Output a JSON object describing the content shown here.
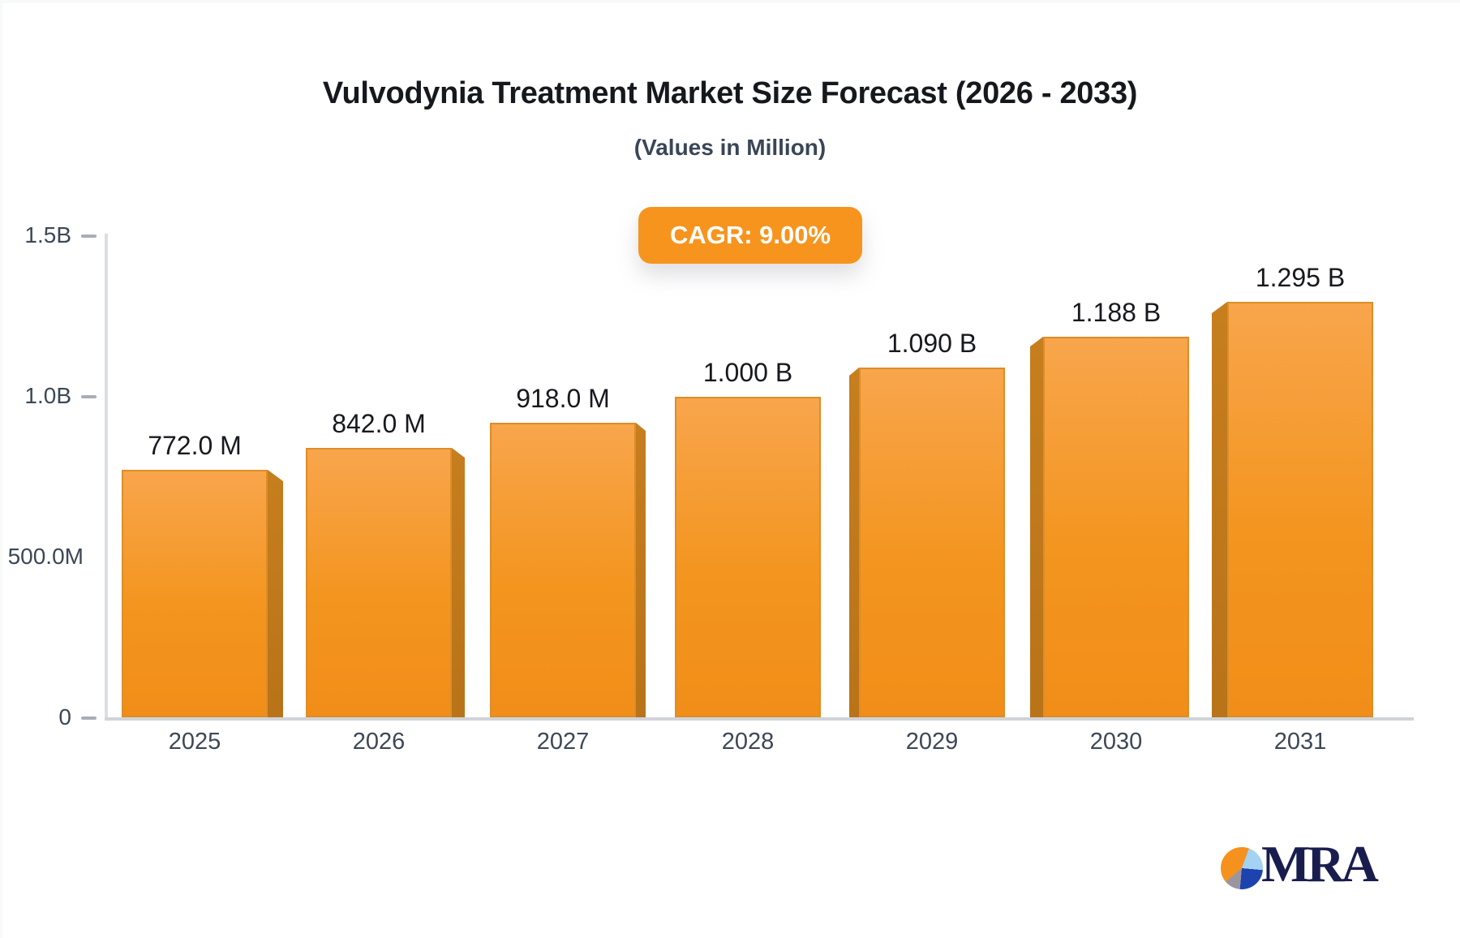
{
  "title": "Vulvodynia Treatment Market Size Forecast (2026 - 2033)",
  "subtitle": "(Values in Million)",
  "cagr_badge": "CAGR: 9.00%",
  "logo": {
    "text": "MRA"
  },
  "chart_data": {
    "type": "bar",
    "title": "Vulvodynia Treatment Market Size Forecast (2026 - 2033)",
    "subtitle": "(Values in Million)",
    "cagr": "9.00%",
    "categories": [
      "2025",
      "2026",
      "2027",
      "2028",
      "2029",
      "2030",
      "2031"
    ],
    "values_million": [
      772,
      842,
      918,
      1000,
      1090,
      1188,
      1295
    ],
    "value_labels": [
      "772.0 M",
      "842.0 M",
      "918.0 M",
      "1.000 B",
      "1.090 B",
      "1.188 B",
      "1.295 B"
    ],
    "ylim_million": [
      0,
      1500
    ],
    "yticks": [
      {
        "label": "0",
        "value_million": 0,
        "dash": true
      },
      {
        "label": "500.0M",
        "value_million": 500,
        "dash": false
      },
      {
        "label": "1.0B",
        "value_million": 1000,
        "dash": true
      },
      {
        "label": "1.5B",
        "value_million": 1500,
        "dash": true
      }
    ],
    "grid": "off",
    "legend": "none",
    "perspective_sides": [
      "right",
      "right",
      "right",
      "none",
      "left",
      "left",
      "left"
    ]
  },
  "colors": {
    "accent_orange": "#f7941e",
    "bar_face_top": "#f8a54c",
    "bar_face_bottom": "#f18e19",
    "bar_side_face": "#c07a1c",
    "title_text": "#15181d",
    "subtitle_text": "#3a4657",
    "axis_text": "#3b4856",
    "axis_line": "#dbdee2",
    "tick_dash": "#a8aeb8",
    "badge_text": "#ffffff",
    "logo_navy": "#191d4e",
    "background": "#ffffff"
  }
}
